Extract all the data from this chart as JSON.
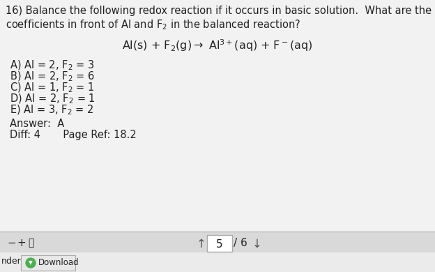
{
  "bg_color": "#ebebeb",
  "content_bg": "#f2f2f2",
  "nav_bg": "#d9d9d9",
  "question_number": "16) ",
  "question_text_line1": "Balance the following redox reaction if it occurs in basic solution.  What are the",
  "question_text_line2a": "coefficients in front of Al and F",
  "question_text_line2c": " in the balanced reaction?",
  "choices": [
    "A) Al = 2, F",
    "B) Al = 2, F",
    "C) Al = 1, F",
    "D) Al = 2, F",
    "E) Al = 3, F"
  ],
  "choices_suffix": [
    " = 3",
    " = 6",
    " = 1",
    " = 1",
    " = 2"
  ],
  "answer_line": "Answer:  A",
  "diff_line": "Diff: 4       Page Ref: 18.2",
  "nav_page": "5",
  "nav_total": "/ 6",
  "download_label": "Download",
  "text_color": "#222222",
  "separator_color": "#cccccc",
  "font_size_main": 10.5,
  "font_size_equation": 11.5,
  "font_size_choices": 10.5,
  "font_size_nav": 10.5
}
